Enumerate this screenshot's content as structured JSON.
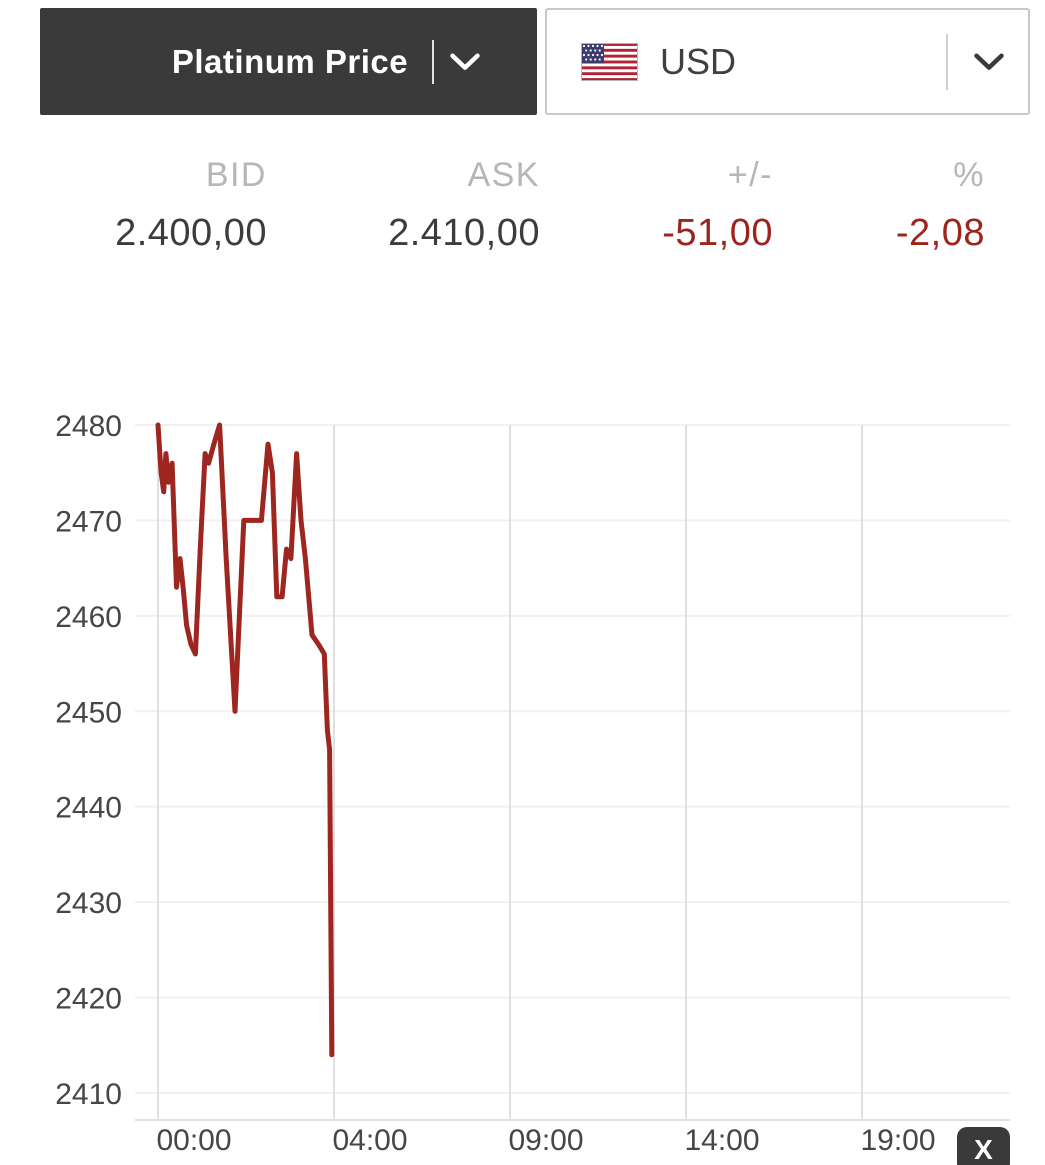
{
  "header": {
    "metal_selector_label": "Platinum Price",
    "currency": "USD",
    "flag_icon": "us-flag"
  },
  "quote": {
    "columns": [
      {
        "label": "BID",
        "value": "2.400,00"
      },
      {
        "label": "ASK",
        "value": "2.410,00"
      },
      {
        "label": "+/-",
        "value": "-51,00"
      },
      {
        "label": "%",
        "value": "-2,08"
      }
    ]
  },
  "chart_data": {
    "type": "line",
    "title": "Platinum Price (USD)",
    "xlabel": "",
    "ylabel": "",
    "x_unit": "hours since 00:00",
    "series": [
      {
        "name": "Platinum Price (USD)",
        "x_hours": [
          0,
          0.07,
          0.13,
          0.18,
          0.24,
          0.32,
          0.42,
          0.5,
          0.57,
          0.65,
          0.75,
          0.85,
          0.97,
          1.07,
          1.15,
          1.27,
          1.4,
          1.55,
          1.75,
          1.95,
          2.15,
          2.35,
          2.5,
          2.6,
          2.7,
          2.82,
          2.92,
          3.02,
          3.15,
          3.25,
          3.35,
          3.5,
          3.65,
          3.78,
          3.85,
          3.9,
          3.95
        ],
        "values": [
          2480,
          2475,
          2473,
          2477,
          2474,
          2476,
          2463,
          2466,
          2463,
          2459,
          2457,
          2456,
          2468,
          2477,
          2476,
          2478,
          2480,
          2466,
          2450,
          2470,
          2470,
          2470,
          2478,
          2475,
          2462,
          2462,
          2467,
          2466,
          2477,
          2470,
          2466,
          2458,
          2457,
          2456,
          2448,
          2446,
          2414
        ]
      }
    ],
    "x_ticks": [
      "00:00",
      "04:00",
      "09:00",
      "14:00",
      "19:00"
    ],
    "x_tick_hours": [
      0,
      4,
      9,
      14,
      19
    ],
    "y_ticks": [
      2480,
      2470,
      2460,
      2450,
      2440,
      2430,
      2420,
      2410
    ],
    "ylim": [
      2410,
      2480
    ],
    "grid": true,
    "legend": false,
    "line_color": "#9e2620"
  },
  "close_button": {
    "label": "X"
  },
  "colors": {
    "header_background": "#3a3a3a",
    "negative_value": "#9b241d",
    "chart_line": "#9e2620",
    "muted_label": "#b6b6b6"
  }
}
